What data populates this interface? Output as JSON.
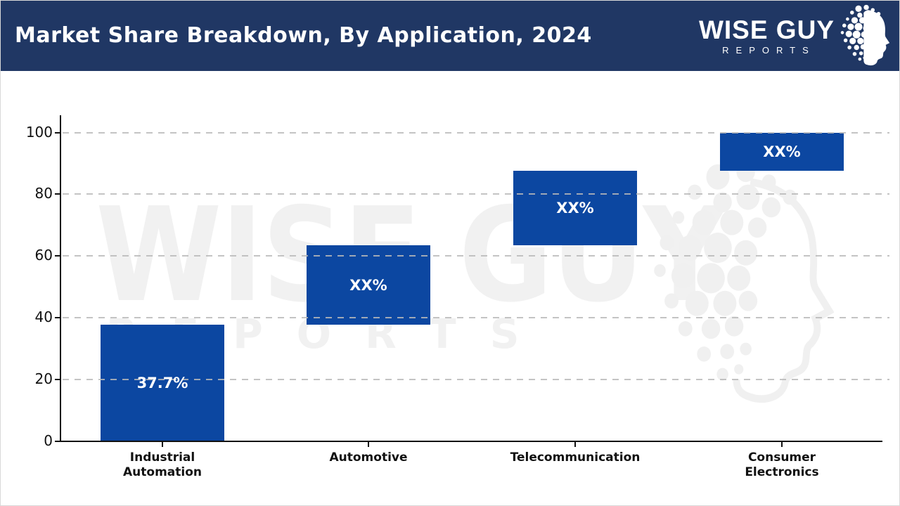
{
  "header": {
    "title": "Market Share Breakdown, By Application, 2024",
    "brand": {
      "name": "WISE GUY",
      "subtitle": "REPORTS"
    }
  },
  "watermark": {
    "line1": "WISE GUY",
    "line2": "REPORTS"
  },
  "colors": {
    "header_bg": "#203764",
    "bar": "#0c47a1",
    "grid_line": "#d8d8d8",
    "axis": "#111111",
    "bar_value_text": "#ffffff",
    "watermark": "#f1f1f1",
    "frame_border": "#d9d9d9"
  },
  "chart_data": {
    "type": "waterfall",
    "title": "Market Share Breakdown, By Application, 2024",
    "categories": [
      "Industrial Automation",
      "Automotive",
      "Telecommunication",
      "Consumer Electronics"
    ],
    "x_label_lines": [
      [
        "Industrial",
        "Automation"
      ],
      [
        "Automotive"
      ],
      [
        "Telecommunication"
      ],
      [
        "Consumer",
        "Electronics"
      ]
    ],
    "segments": [
      {
        "category": "Industrial Automation",
        "start": 0,
        "end": 37.7,
        "value_label": "37.7%"
      },
      {
        "category": "Automotive",
        "start": 37.7,
        "end": 63.5,
        "value_label": "XX%"
      },
      {
        "category": "Telecommunication",
        "start": 63.5,
        "end": 87.6,
        "value_label": "XX%"
      },
      {
        "category": "Consumer Electronics",
        "start": 87.6,
        "end": 100,
        "value_label": "XX%"
      }
    ],
    "y_ticks": [
      0,
      20,
      40,
      60,
      80,
      100
    ],
    "ylim": [
      0,
      100
    ],
    "xlabel": "",
    "ylabel": "",
    "grid": "horizontal-dashed",
    "legend": "none",
    "bar_color": "#0c47a1"
  }
}
